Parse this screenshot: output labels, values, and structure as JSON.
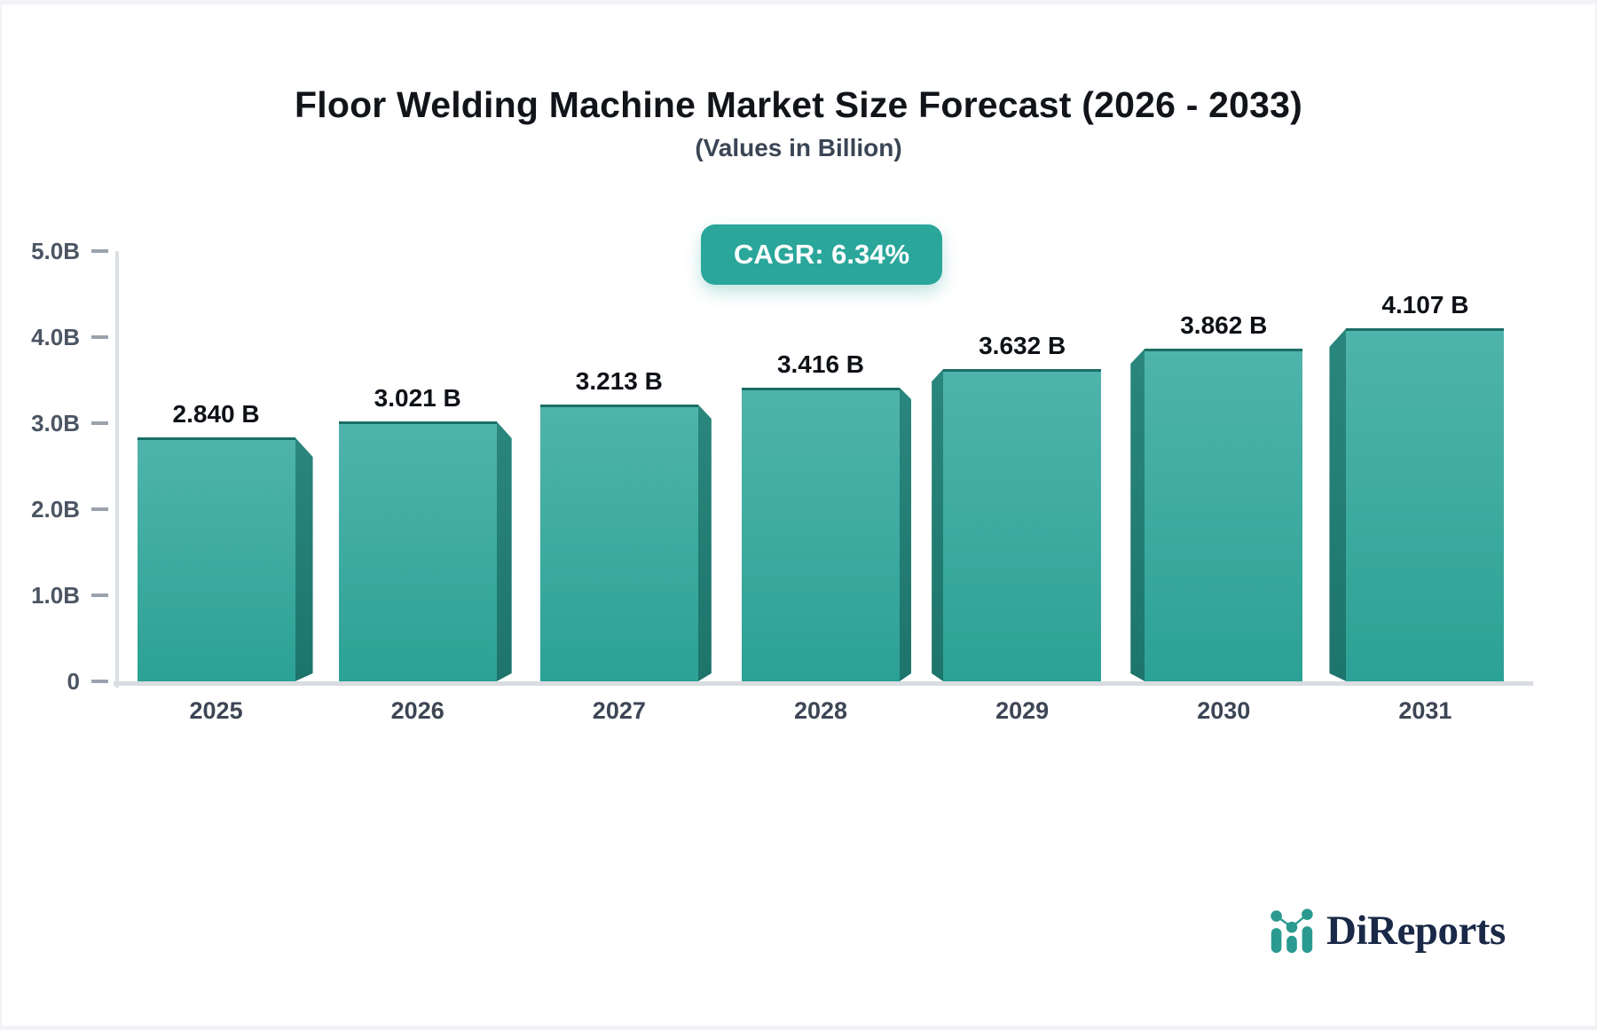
{
  "page": {
    "background": "#f2f3f6",
    "card_background": "#ffffff"
  },
  "header": {
    "title": "Floor Welding Machine Market Size Forecast (2026 - 2033)",
    "subtitle": "(Values in Billion)"
  },
  "badge": {
    "label": "CAGR: 6.34%",
    "background": "#2aa69b",
    "text_color": "#ffffff"
  },
  "chart_data": {
    "type": "bar",
    "title": "Floor Welding Machine Market Size Forecast (2026 - 2033)",
    "subtitle": "(Values in Billion)",
    "categories": [
      "2025",
      "2026",
      "2027",
      "2028",
      "2029",
      "2030",
      "2031"
    ],
    "values": [
      2.84,
      3.021,
      3.213,
      3.416,
      3.632,
      3.862,
      4.107
    ],
    "value_labels": [
      "2.840 B",
      "3.021 B",
      "3.213 B",
      "3.416 B",
      "3.632 B",
      "3.862 B",
      "4.107 B"
    ],
    "unit": "Billion",
    "cagr": "6.34%",
    "xlabel": "",
    "ylabel": "",
    "ylim": [
      0,
      5
    ],
    "grid": false,
    "legend": null,
    "y_ticks": [
      {
        "value": 5,
        "label": "5.0B"
      },
      {
        "value": 4,
        "label": "4.0B"
      },
      {
        "value": 3,
        "label": "3.0B"
      },
      {
        "value": 2,
        "label": "2.0B"
      },
      {
        "value": 1,
        "label": "1.0B"
      },
      {
        "value": 0,
        "label": "0"
      }
    ],
    "colors": {
      "bar_face_top": "#4fb4ab",
      "bar_face_bottom": "#2ca195",
      "bar_side": "#1f7a71",
      "bar_top_edge": "#1a6f66",
      "axis": "#d9dce1",
      "tick_dash": "#9aa2ac",
      "tick_label": "#4b5563",
      "category_label": "#3d4655",
      "value_label": "#0e1116"
    }
  },
  "watermark": {
    "text": "DiReports",
    "icon": "mini-bar-chart-logo-icon",
    "text_color": "#1a2947",
    "icon_color": "#2a9a90"
  }
}
